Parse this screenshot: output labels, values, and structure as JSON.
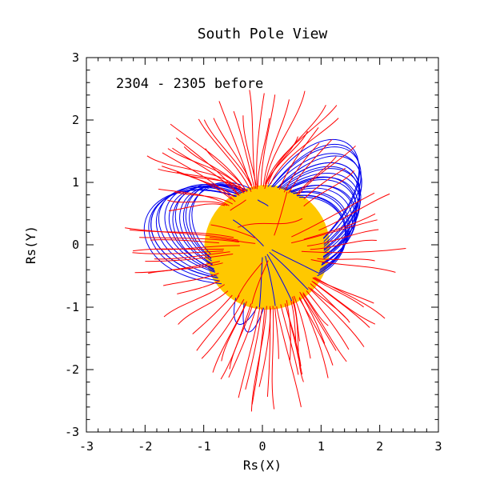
{
  "title": "South Pole View",
  "annotation": "2304 - 2305 before",
  "colors": {
    "background": "#ffffff",
    "axis": "#000000",
    "text": "#000000",
    "open_field": "#ff0000",
    "closed_field": "#0000ee",
    "sun": "#ffc800"
  },
  "chart_data": {
    "type": "line",
    "title": "South Pole View",
    "annotation": "2304 - 2305 before",
    "xlabel": "Rs(X)",
    "ylabel": "Rs(Y)",
    "xlim": [
      -3,
      3
    ],
    "ylim": [
      -3,
      3
    ],
    "xticks": [
      -3,
      -2,
      -1,
      0,
      1,
      2,
      3
    ],
    "yticks": [
      3,
      2,
      1,
      0,
      -1,
      -2,
      -3
    ],
    "minor_step": 0.2,
    "minors_per_major": 5,
    "grid": false,
    "legend": "none",
    "sun": {
      "center": [
        0.08,
        -0.04
      ],
      "rx": 1.07,
      "ry": 1.0
    },
    "seed": 7,
    "open_bundles": [
      {
        "name": "top-fan",
        "count": 24,
        "foot": [
          88,
          116
        ],
        "dir": [
          58,
          148
        ],
        "r_start": [
          0.92,
          1.03
        ],
        "r_end": [
          1.85,
          2.6
        ],
        "jitter": 5
      },
      {
        "name": "upper-left-fan",
        "count": 9,
        "foot": [
          118,
          138
        ],
        "dir": [
          130,
          160
        ],
        "r_start": [
          0.9,
          1.0
        ],
        "r_end": [
          1.75,
          2.4
        ],
        "jitter": 4
      },
      {
        "name": "left-horizontal",
        "count": 11,
        "foot": [
          164,
          198
        ],
        "dir": [
          172,
          191
        ],
        "r_start": [
          0.45,
          0.95
        ],
        "r_end": [
          1.9,
          2.45
        ],
        "jitter": 3
      },
      {
        "name": "lower-left-fan",
        "count": 7,
        "foot": [
          206,
          246
        ],
        "dir": [
          200,
          238
        ],
        "r_start": [
          0.9,
          1.0
        ],
        "r_end": [
          1.55,
          2.2
        ],
        "jitter": 5
      },
      {
        "name": "bottom-fan",
        "count": 17,
        "foot": [
          248,
          290
        ],
        "dir": [
          243,
          289
        ],
        "r_start": [
          0.92,
          1.0
        ],
        "r_end": [
          1.8,
          2.65
        ],
        "jitter": 5
      },
      {
        "name": "bottom-right-fan",
        "count": 20,
        "foot": [
          293,
          330
        ],
        "dir": [
          283,
          333
        ],
        "r_start": [
          0.9,
          1.0
        ],
        "r_end": [
          1.6,
          2.35
        ],
        "jitter": 5
      },
      {
        "name": "right-bundle",
        "count": 9,
        "foot": [
          -15,
          22
        ],
        "dir": [
          -10,
          26
        ],
        "r_start": [
          0.4,
          0.95
        ],
        "r_end": [
          1.8,
          2.5
        ],
        "jitter": 4
      },
      {
        "name": "upper-right-fan",
        "count": 7,
        "foot": [
          46,
          76
        ],
        "dir": [
          38,
          66
        ],
        "r_start": [
          0.9,
          1.0
        ],
        "r_end": [
          1.8,
          2.3
        ],
        "jitter": 4
      }
    ],
    "loop_bundles": [
      {
        "name": "left-loops",
        "count": 15,
        "footA": [
          108,
          124
        ],
        "footB": [
          188,
          216
        ],
        "apex": [
          1.28,
          2.1
        ]
      },
      {
        "name": "right-loops",
        "count": 21,
        "footA": [
          56,
          88
        ],
        "footB": [
          -28,
          8
        ],
        "apex": [
          1.22,
          2.05
        ]
      },
      {
        "name": "bottom-small-loops",
        "count": 2,
        "footA": [
          238,
          246
        ],
        "footB": [
          258,
          268
        ],
        "apex": [
          1.1,
          1.18
        ]
      }
    ],
    "disk_lines": [
      {
        "color": "blue",
        "pts": [
          [
            0.12,
            -0.12
          ],
          [
            0.35,
            -0.3
          ],
          [
            0.55,
            -0.5
          ],
          [
            0.78,
            -0.72
          ]
        ]
      },
      {
        "color": "blue",
        "pts": [
          [
            0.08,
            -0.15
          ],
          [
            0.25,
            -0.42
          ],
          [
            0.38,
            -0.65
          ],
          [
            0.5,
            -0.9
          ]
        ]
      },
      {
        "color": "blue",
        "pts": [
          [
            0.05,
            -0.18
          ],
          [
            0.12,
            -0.45
          ],
          [
            0.18,
            -0.7
          ],
          [
            0.22,
            -0.98
          ]
        ]
      },
      {
        "color": "blue",
        "pts": [
          [
            0.16,
            -0.08
          ],
          [
            0.45,
            -0.22
          ],
          [
            0.7,
            -0.33
          ],
          [
            0.95,
            -0.45
          ]
        ]
      },
      {
        "color": "blue",
        "pts": [
          [
            0.0,
            -0.2
          ],
          [
            -0.02,
            -0.5
          ],
          [
            -0.02,
            -0.75
          ],
          [
            -0.05,
            -1.0
          ]
        ]
      },
      {
        "color": "blue",
        "pts": [
          [
            -0.5,
            0.4
          ],
          [
            -0.3,
            0.28
          ],
          [
            -0.12,
            0.12
          ],
          [
            0.02,
            -0.02
          ]
        ]
      },
      {
        "color": "blue",
        "pts": [
          [
            -0.08,
            0.72
          ],
          [
            -0.02,
            0.68
          ],
          [
            0.05,
            0.66
          ],
          [
            0.1,
            0.62
          ]
        ]
      },
      {
        "color": "red",
        "pts": [
          [
            -0.42,
            0.28
          ],
          [
            0.0,
            0.42
          ],
          [
            0.35,
            0.25
          ],
          [
            0.68,
            0.42
          ]
        ]
      },
      {
        "color": "red",
        "pts": [
          [
            -0.1,
            0.1
          ],
          [
            -0.35,
            0.2
          ],
          [
            -0.6,
            0.28
          ],
          [
            -0.88,
            0.32
          ]
        ]
      },
      {
        "color": "red",
        "pts": [
          [
            -0.12,
            0.02
          ],
          [
            -0.4,
            0.05
          ],
          [
            -0.65,
            0.1
          ],
          [
            -0.9,
            0.12
          ]
        ]
      },
      {
        "color": "red",
        "pts": [
          [
            0.0,
            -0.28
          ],
          [
            -0.2,
            -0.5
          ],
          [
            -0.35,
            -0.68
          ],
          [
            -0.45,
            -0.9
          ]
        ]
      },
      {
        "color": "red",
        "pts": [
          [
            0.1,
            -0.25
          ],
          [
            -0.02,
            -0.5
          ],
          [
            -0.12,
            -0.72
          ],
          [
            -0.18,
            -0.95
          ]
        ]
      },
      {
        "color": "red",
        "pts": [
          [
            0.2,
            0.15
          ],
          [
            0.3,
            0.4
          ],
          [
            0.35,
            0.6
          ],
          [
            0.42,
            0.85
          ]
        ]
      },
      {
        "color": "red",
        "pts": [
          [
            -0.55,
            0.55
          ],
          [
            -0.45,
            0.62
          ],
          [
            -0.35,
            0.66
          ],
          [
            -0.28,
            0.72
          ]
        ]
      }
    ]
  }
}
